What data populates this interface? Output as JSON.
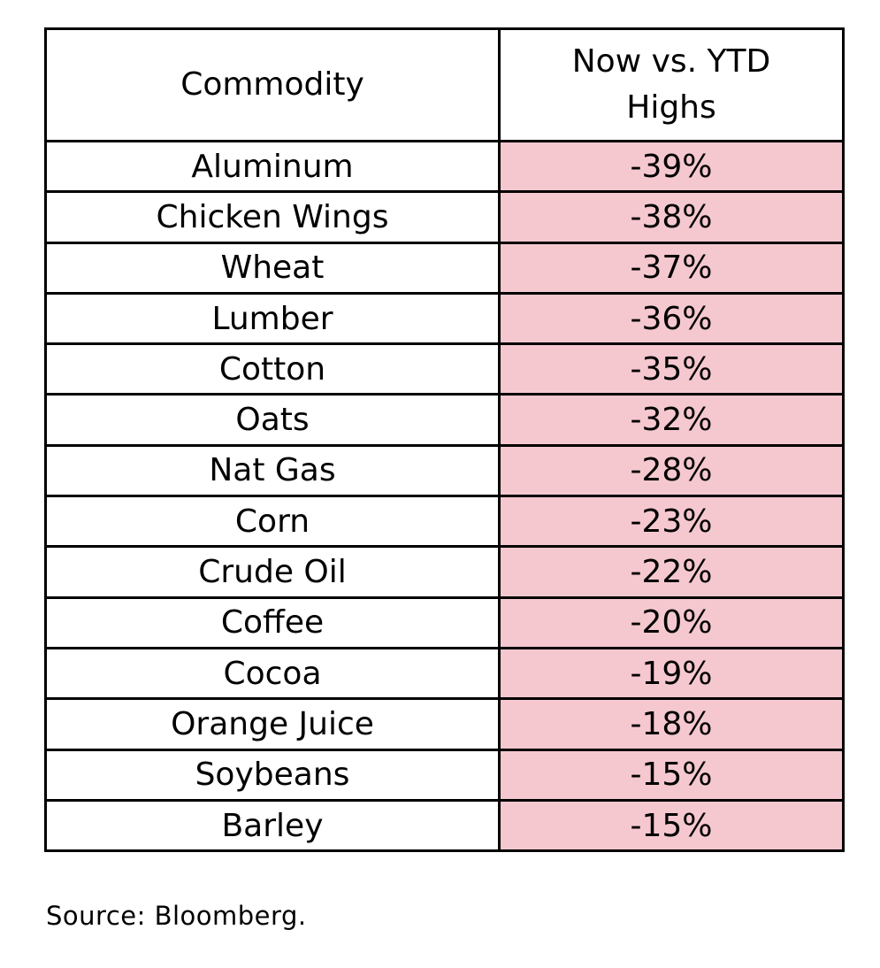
{
  "table": {
    "header": {
      "col1": "Commodity",
      "col2_line1": "Now vs. YTD",
      "col2_line2": "Highs"
    },
    "rows": [
      {
        "commodity": "Aluminum",
        "value": "-39%"
      },
      {
        "commodity": "Chicken Wings",
        "value": "-38%"
      },
      {
        "commodity": "Wheat",
        "value": "-37%"
      },
      {
        "commodity": "Lumber",
        "value": "-36%"
      },
      {
        "commodity": "Cotton",
        "value": "-35%"
      },
      {
        "commodity": "Oats",
        "value": "-32%"
      },
      {
        "commodity": "Nat Gas",
        "value": "-28%"
      },
      {
        "commodity": "Corn",
        "value": "-23%"
      },
      {
        "commodity": "Crude Oil",
        "value": "-22%"
      },
      {
        "commodity": "Coffee",
        "value": "-20%"
      },
      {
        "commodity": "Cocoa",
        "value": "-19%"
      },
      {
        "commodity": "Orange Juice",
        "value": "-18%"
      },
      {
        "commodity": "Soybeans",
        "value": "-15%"
      },
      {
        "commodity": "Barley",
        "value": "-15%"
      }
    ]
  },
  "source": "Source: Bloomberg.",
  "colors": {
    "value_cell_highlight": "#f5c8cf",
    "border": "#000000",
    "background": "#ffffff",
    "text": "#000000"
  },
  "chart_data": {
    "type": "table",
    "title": "",
    "columns": [
      "Commodity",
      "Now vs. YTD Highs"
    ],
    "rows": [
      [
        "Aluminum",
        "-39%"
      ],
      [
        "Chicken Wings",
        "-38%"
      ],
      [
        "Wheat",
        "-37%"
      ],
      [
        "Lumber",
        "-36%"
      ],
      [
        "Cotton",
        "-35%"
      ],
      [
        "Oats",
        "-32%"
      ],
      [
        "Nat Gas",
        "-28%"
      ],
      [
        "Corn",
        "-23%"
      ],
      [
        "Crude Oil",
        "-22%"
      ],
      [
        "Coffee",
        "-20%"
      ],
      [
        "Cocoa",
        "-19%"
      ],
      [
        "Orange Juice",
        "-18%"
      ],
      [
        "Soybeans",
        "-15%"
      ],
      [
        "Barley",
        "-15%"
      ]
    ],
    "values_numeric_pct": [
      -39,
      -38,
      -37,
      -36,
      -35,
      -32,
      -28,
      -23,
      -22,
      -20,
      -19,
      -18,
      -15,
      -15
    ],
    "annotations": [
      "Source: Bloomberg."
    ],
    "layout_hints": {
      "value_column_fill": "#f5c8cf",
      "grid": "all-borders-black",
      "text_align": "center"
    }
  }
}
